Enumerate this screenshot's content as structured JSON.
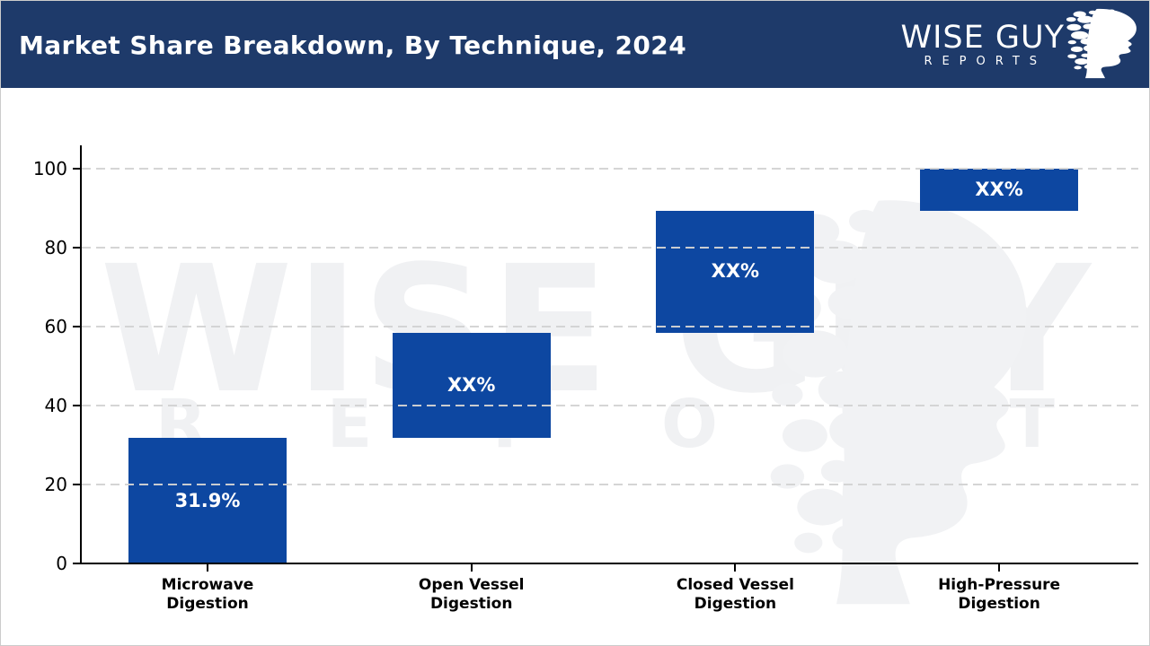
{
  "header": {
    "title": "Market Share Breakdown, By Technique, 2024",
    "logo": {
      "primary": "WISE GUY",
      "secondary": "REPORTS"
    }
  },
  "watermark": {
    "primary": "WISE GUY",
    "secondary": "R E P O R T S"
  },
  "chart_data": {
    "type": "bar",
    "subtype": "waterfall",
    "title": "Market Share Breakdown, By Technique, 2024",
    "categories": [
      "Microwave Digestion",
      "Open Vessel Digestion",
      "Closed Vessel Digestion",
      "High-Pressure Digestion"
    ],
    "category_label_lines": [
      [
        "Microwave",
        "Digestion"
      ],
      [
        "Open Vessel",
        "Digestion"
      ],
      [
        "Closed Vessel",
        "Digestion"
      ],
      [
        "High-Pressure",
        "Digestion"
      ]
    ],
    "segments": [
      {
        "category": "Microwave Digestion",
        "start": 0,
        "end": 31.9,
        "label": "31.9%"
      },
      {
        "category": "Open Vessel Digestion",
        "start": 31.9,
        "end": 58.4,
        "label": "XX%"
      },
      {
        "category": "Closed Vessel Digestion",
        "start": 58.4,
        "end": 89.3,
        "label": "XX%"
      },
      {
        "category": "High-Pressure Digestion",
        "start": 89.3,
        "end": 100,
        "label": "XX%"
      }
    ],
    "xlabel": "",
    "ylabel": "",
    "ylim": [
      0,
      100
    ],
    "yticks": [
      0,
      20,
      40,
      60,
      80,
      100
    ],
    "grid": {
      "axis": "y",
      "style": "dashed"
    },
    "legend": "none",
    "colors": {
      "bar": "#0d47a1",
      "value_label": "#ffffff",
      "grid": "#d3d3d3",
      "axis": "#000000",
      "header_bg": "#1e3a6a",
      "header_text": "#ffffff",
      "watermark": "#f0f1f3",
      "page_bg": "#ffffff"
    }
  }
}
